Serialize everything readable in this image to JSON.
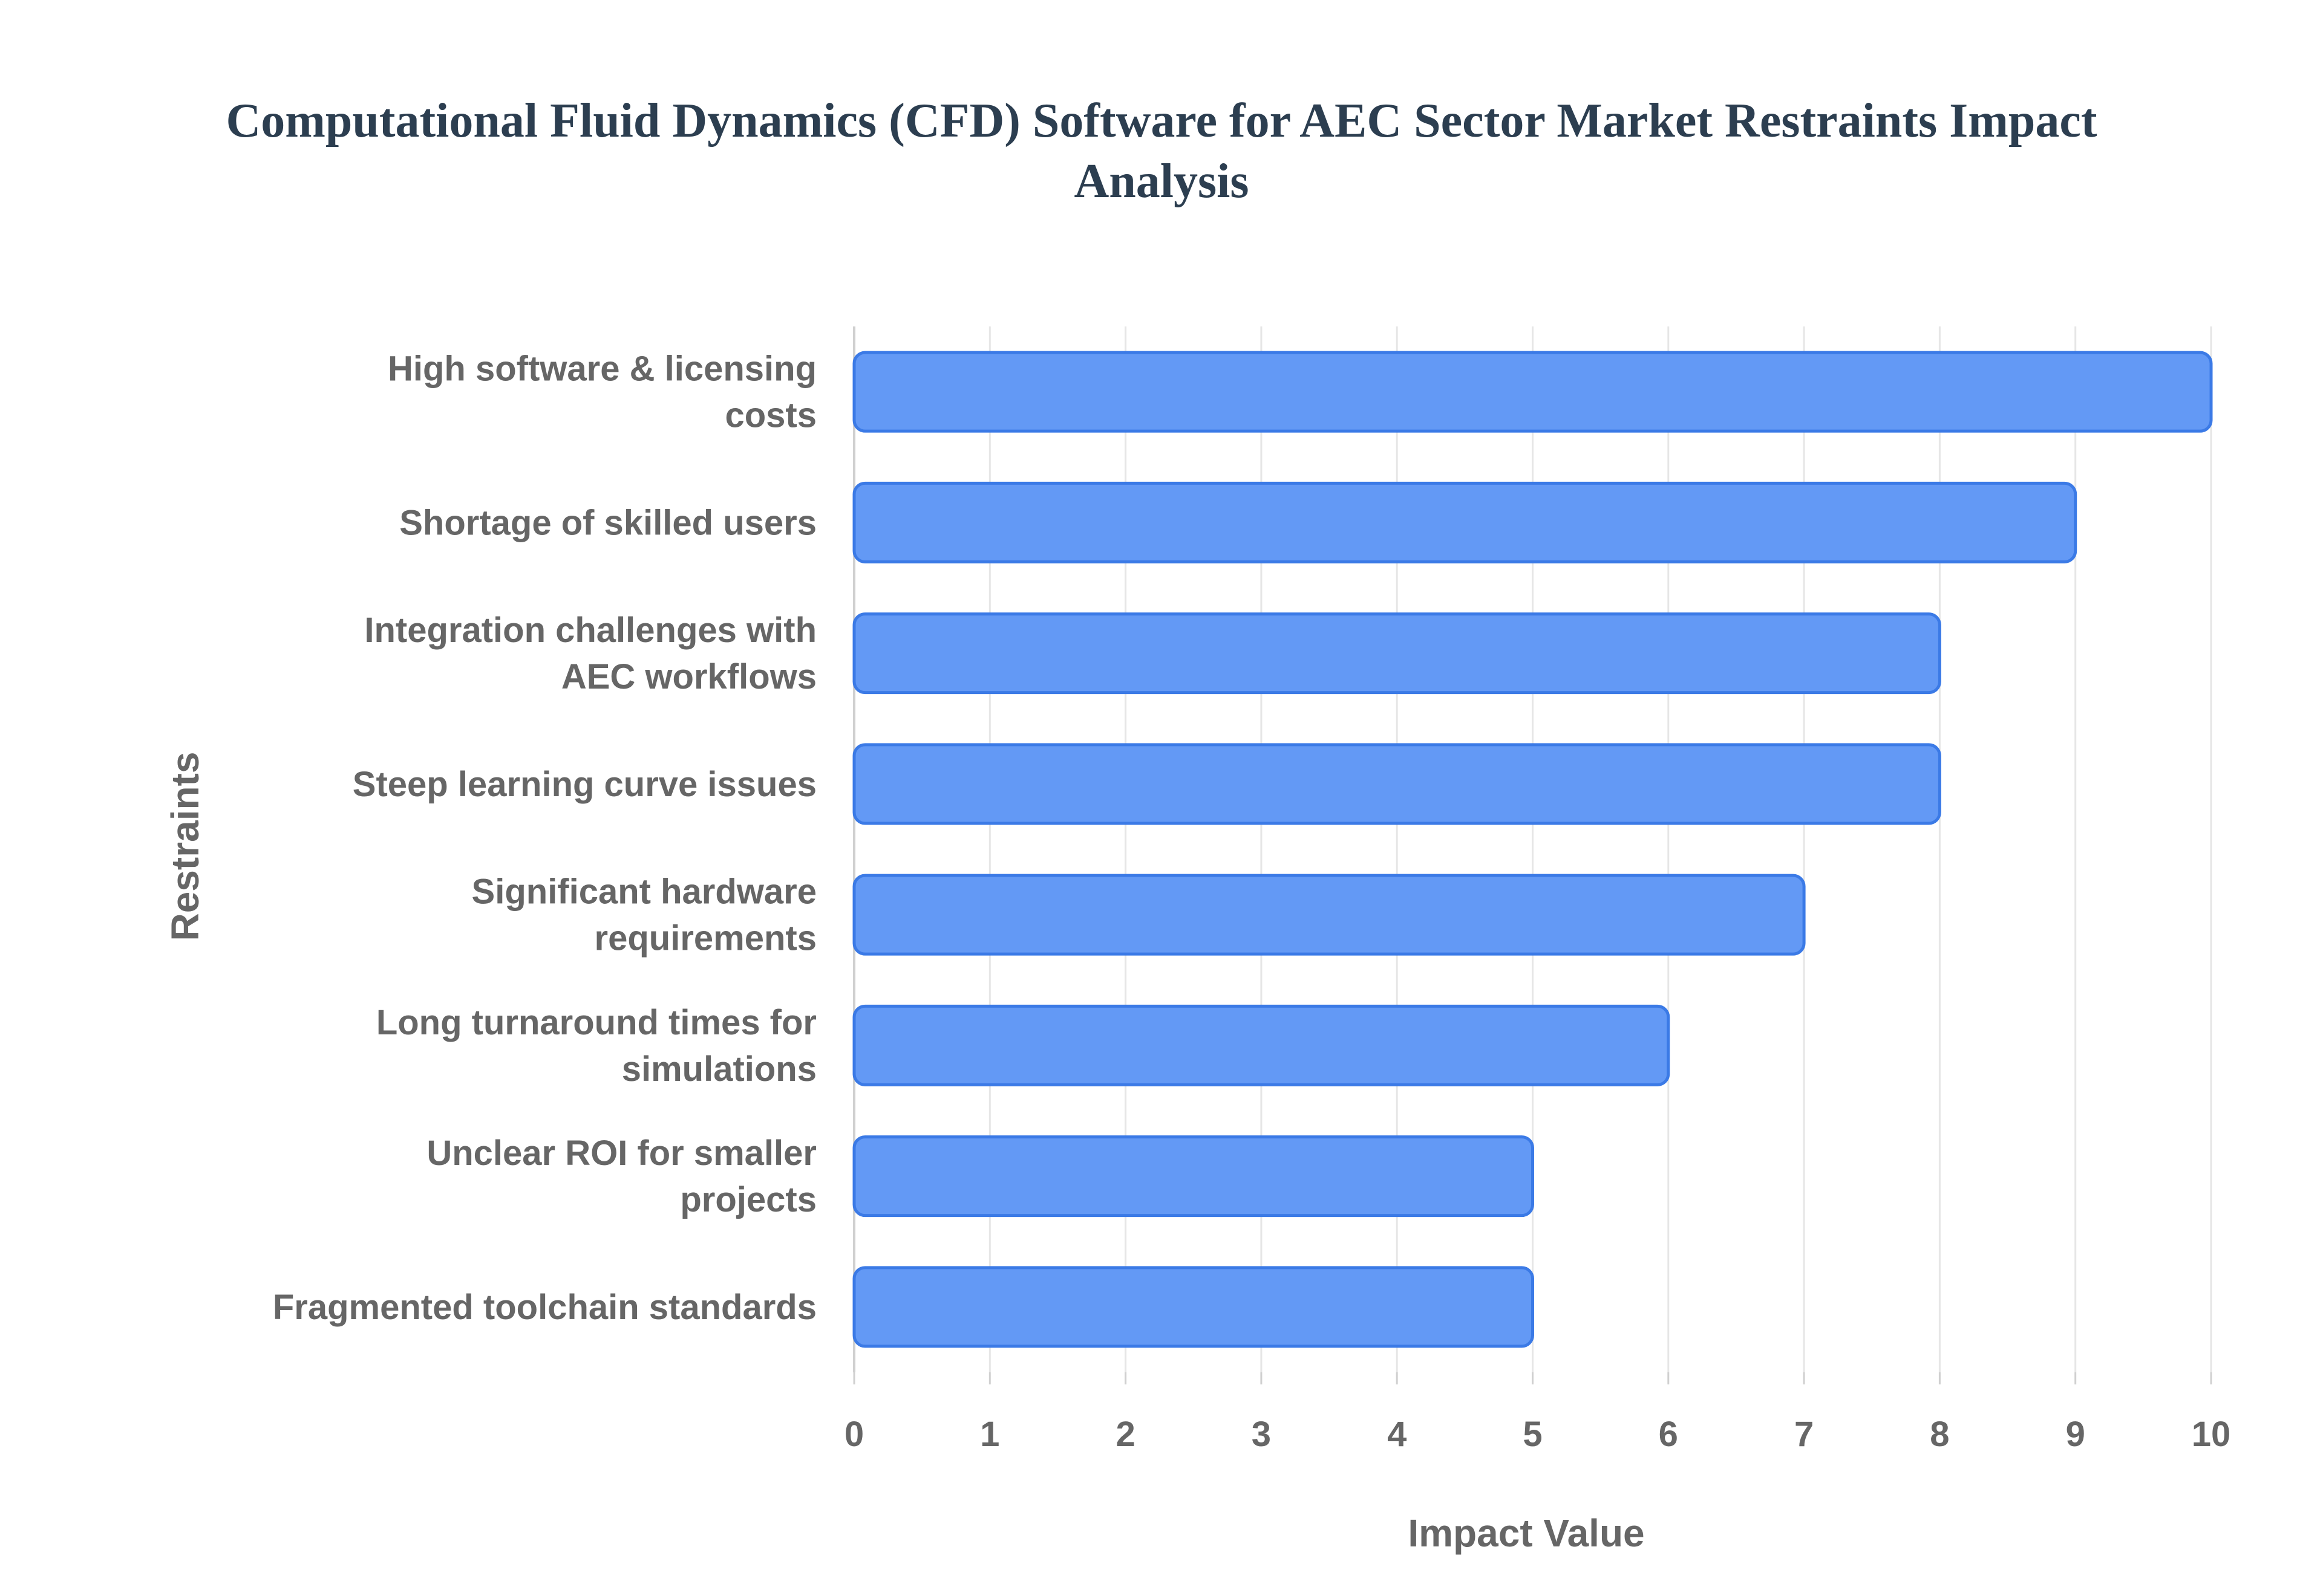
{
  "chart_data": {
    "type": "bar",
    "orientation": "horizontal",
    "title": "Computational Fluid Dynamics (CFD) Software for AEC Sector Market Restraints Impact Analysis",
    "title_lines": [
      "Computational Fluid Dynamics (CFD) Software for AEC Sector Market Restraints Impact",
      "Analysis"
    ],
    "xlabel": "Impact Value",
    "ylabel": "Restraints",
    "xlim": [
      0,
      10
    ],
    "xticks": [
      "0",
      "1",
      "2",
      "3",
      "4",
      "5",
      "6",
      "7",
      "8",
      "9",
      "10"
    ],
    "grid": true,
    "legend": "none",
    "categories": [
      "High software & licensing costs",
      "Shortage of skilled users",
      "Integration challenges with AEC workflows",
      "Steep learning curve issues",
      "Significant hardware requirements",
      "Long turnaround times for simulations",
      "Unclear ROI for smaller projects",
      "Fragmented toolchain standards"
    ],
    "category_label_lines": [
      [
        "High software & licensing",
        "costs"
      ],
      [
        "Shortage of skilled users"
      ],
      [
        "Integration challenges with",
        "AEC workflows"
      ],
      [
        "Steep learning curve issues"
      ],
      [
        "Significant hardware",
        "requirements"
      ],
      [
        "Long turnaround times for",
        "simulations"
      ],
      [
        "Unclear ROI for smaller",
        "projects"
      ],
      [
        "Fragmented toolchain standards"
      ]
    ],
    "values": [
      10,
      9,
      8,
      8,
      7,
      6,
      5,
      5
    ],
    "colors": {
      "bar_fill": "#6399f5",
      "bar_stroke": "#3b7ae6",
      "grid": "#e6e6e6",
      "axis": "#d0d0d0",
      "tick_text": "#666666",
      "title": "#2c3e50"
    }
  }
}
